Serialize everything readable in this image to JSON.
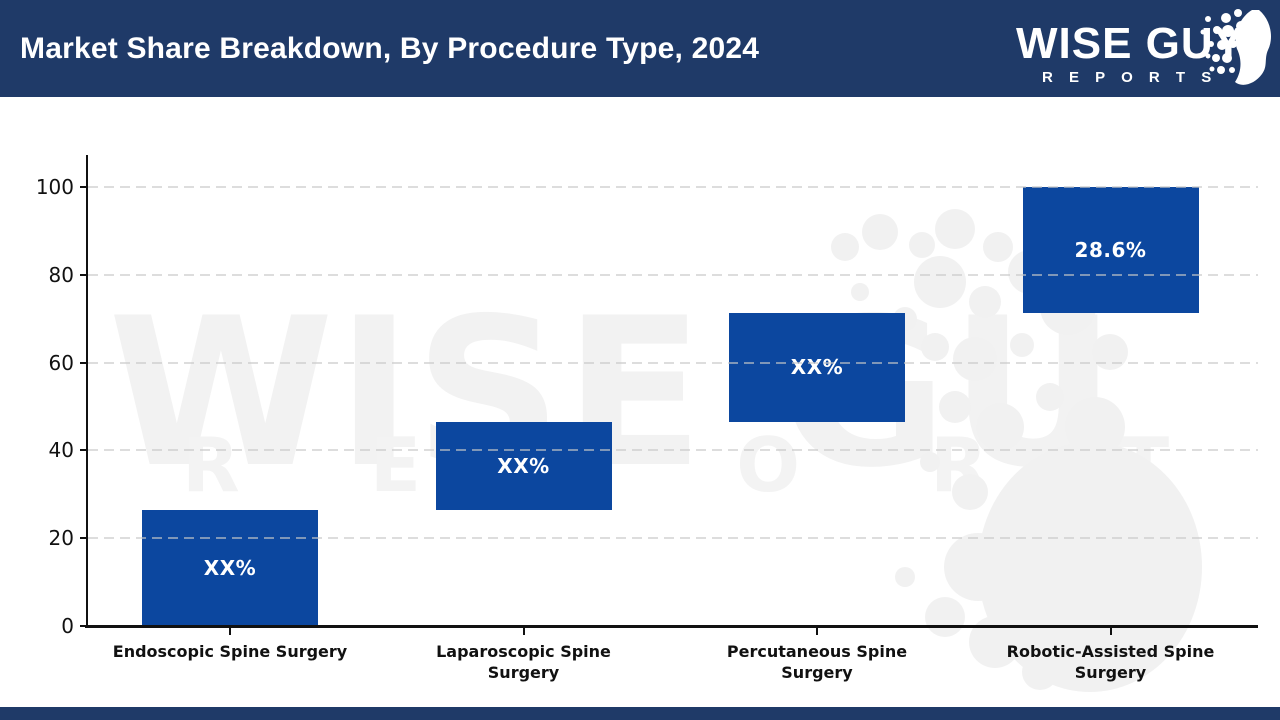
{
  "header": {
    "title": "Market Share Breakdown, By Procedure Type, 2024",
    "logo": {
      "brand_top": "WISE GUY",
      "brand_bottom": "R E P O R T S"
    }
  },
  "watermark": {
    "big_text": "WISE GU",
    "letters_row": "R E P O R T S"
  },
  "colors": {
    "header_bg": "#1f3a68",
    "footer_bg": "#1f3a68",
    "title_text": "#ffffff",
    "bar_fill": "#0c479f",
    "bar_label_text": "#ffffff",
    "axis": "#111111",
    "grid": "#dcdcdc",
    "watermark": "#f2f2f2"
  },
  "chart_data": {
    "type": "bar",
    "subtype": "waterfall",
    "title": "Market Share Breakdown, By Procedure Type, 2024",
    "categories": [
      "Endoscopic Spine Surgery",
      "Laparoscopic Spine Surgery",
      "Percutaneous Spine Surgery",
      "Robotic-Assisted Spine Surgery"
    ],
    "segments": [
      {
        "category": "Endoscopic Spine Surgery",
        "label": "XX%",
        "start": 0,
        "end": 26.5
      },
      {
        "category": "Laparoscopic Spine Surgery",
        "label": "XX%",
        "start": 26.5,
        "end": 46.5
      },
      {
        "category": "Percutaneous Spine Surgery",
        "label": "XX%",
        "start": 46.5,
        "end": 71.4
      },
      {
        "category": "Robotic-Assisted Spine Surgery",
        "label": "28.6%",
        "start": 71.4,
        "end": 100
      }
    ],
    "values_masked_note": "first three bars display XX% placeholders",
    "yticks": [
      0,
      20,
      40,
      60,
      80,
      100
    ],
    "ylim": [
      0,
      105
    ],
    "xlabel": "",
    "ylabel": "",
    "grid": "dashed-horizontal",
    "legend": "none"
  }
}
